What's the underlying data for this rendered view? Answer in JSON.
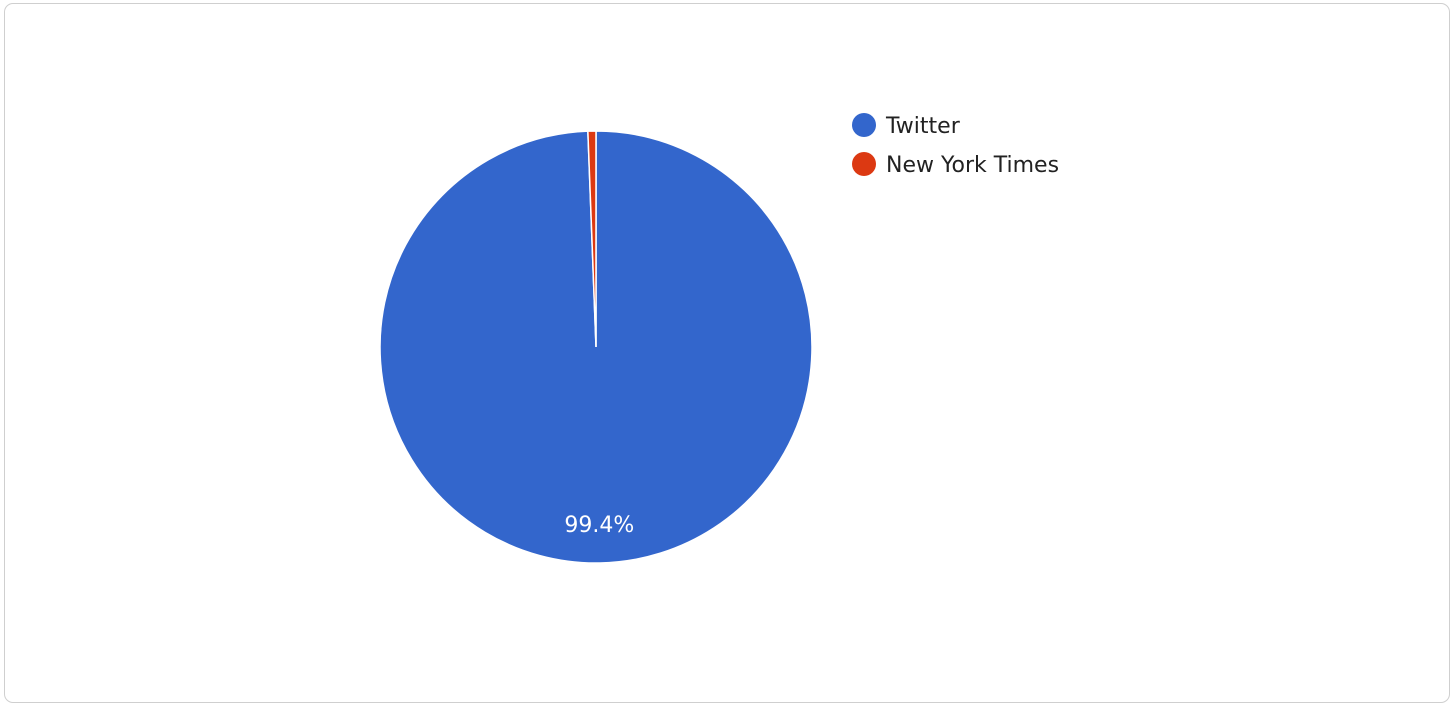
{
  "chart_data": {
    "type": "pie",
    "title": "",
    "series": [
      {
        "name": "Twitter",
        "value": 99.4,
        "label": "99.4%",
        "color": "#3366cc"
      },
      {
        "name": "New York Times",
        "value": 0.6,
        "label": "",
        "color": "#dc3912"
      }
    ],
    "legend_position": "right",
    "start_angle": "top",
    "direction": "clockwise"
  }
}
